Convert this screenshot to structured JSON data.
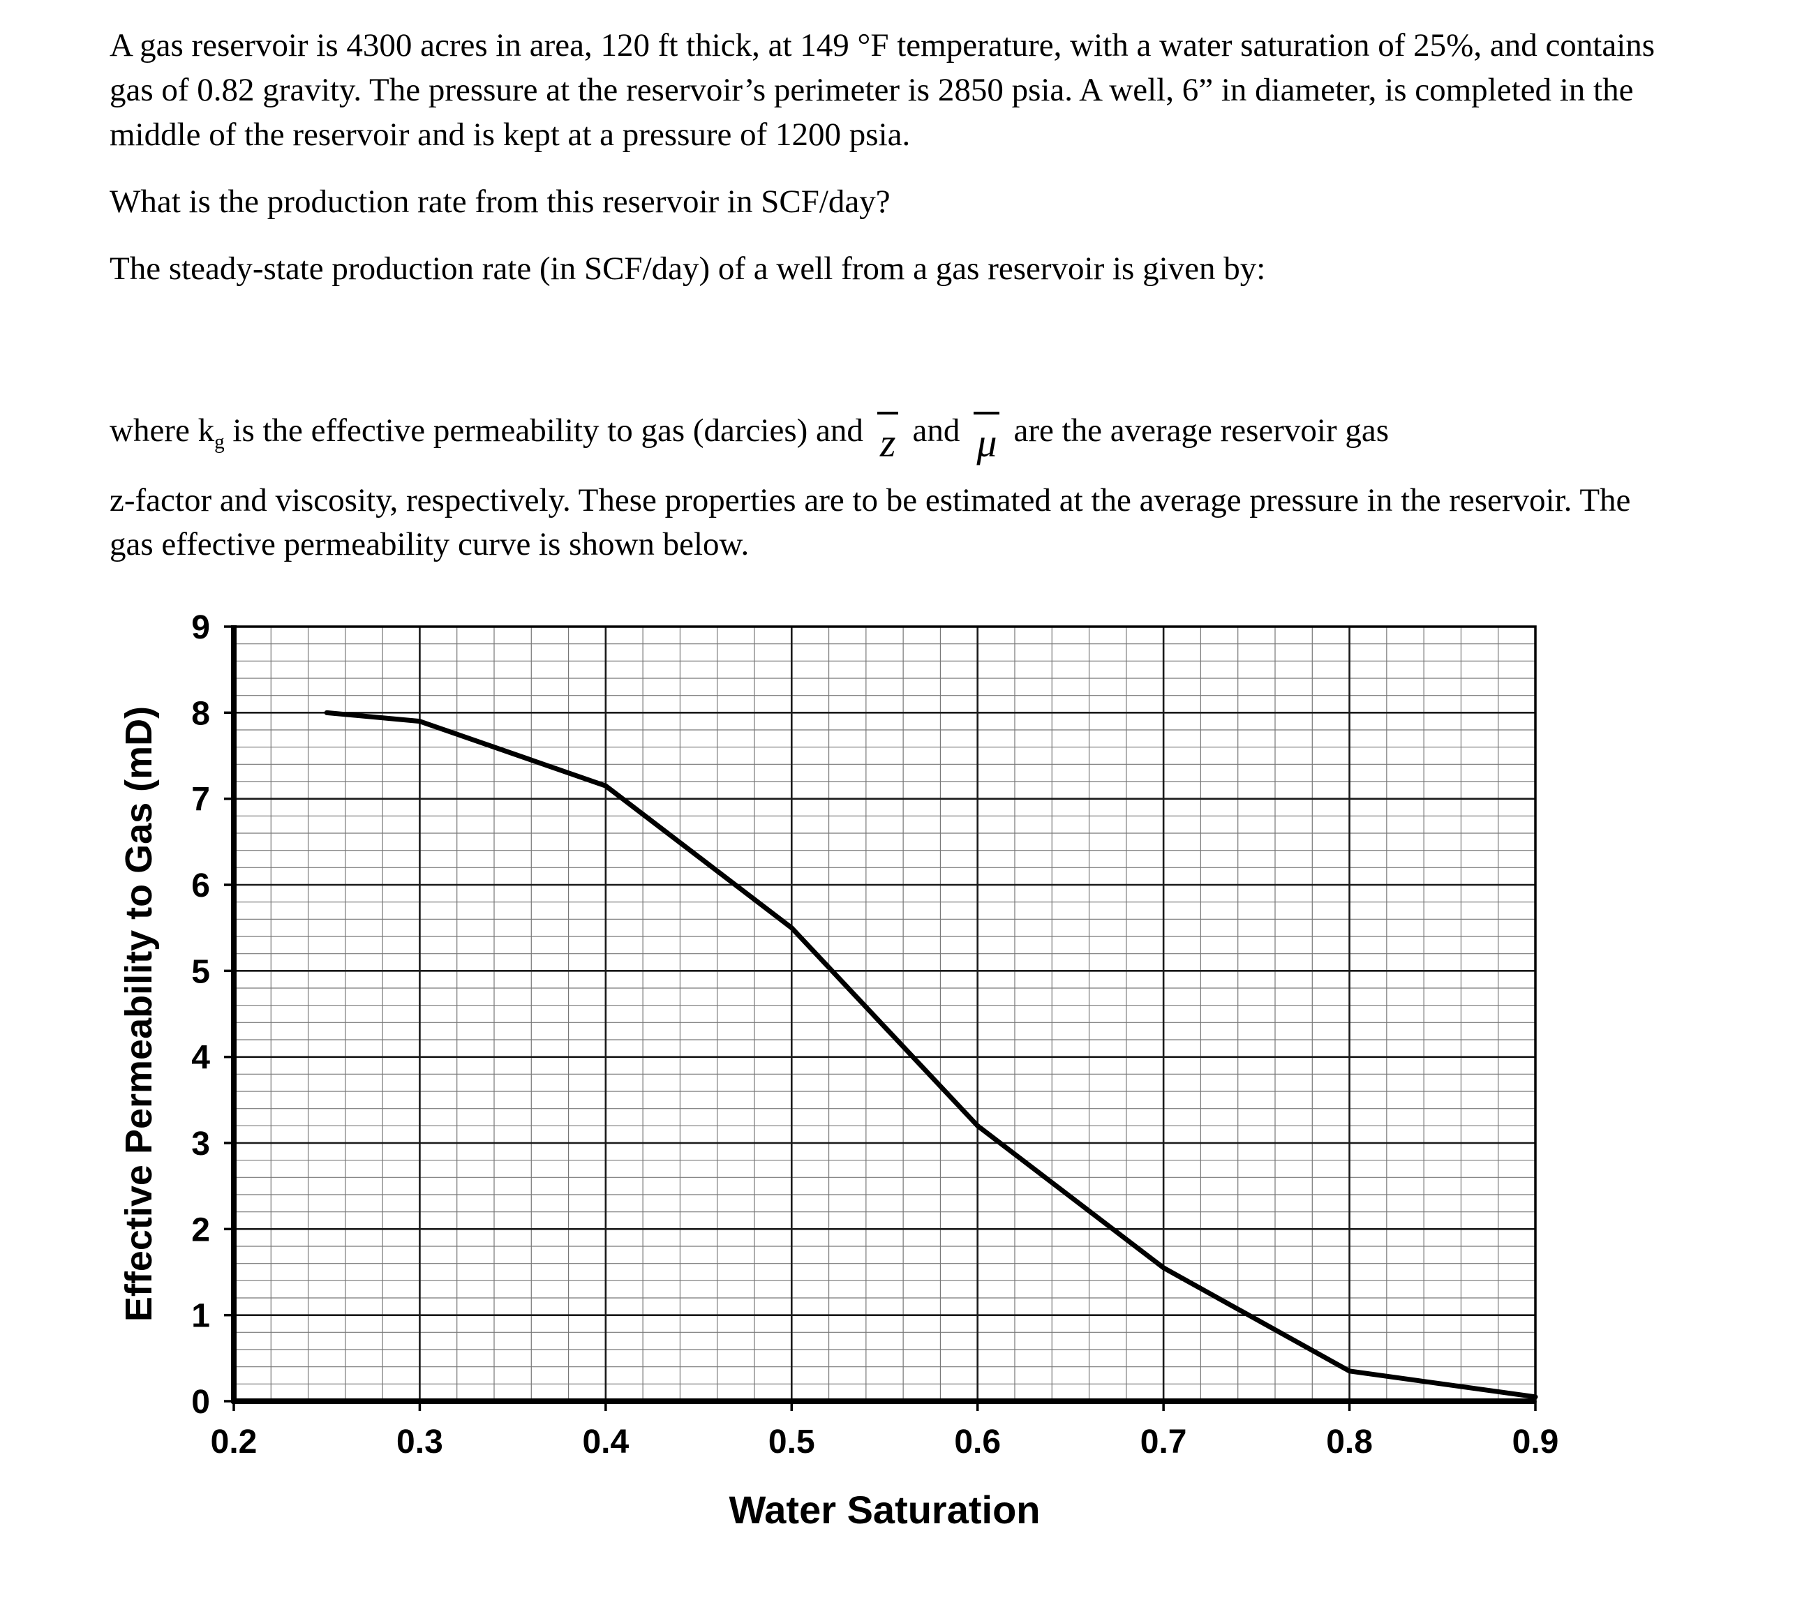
{
  "document": {
    "paragraph1": "A gas reservoir is 4300 acres in area, 120 ft thick, at 149 °F temperature, with a water saturation of 25%, and contains gas of 0.82 gravity. The pressure at the reservoir’s perimeter is 2850 psia. A well, 6” in diameter, is completed in the middle of the reservoir and is kept at a pressure of 1200 psia.",
    "paragraph2": "What is the production rate from this reservoir in SCF/day?",
    "paragraph3": "The steady-state production rate (in SCF/day) of a well from a gas reservoir is given by:",
    "paragraph4": {
      "pre": "where k",
      "sub": "g",
      "mid": " is the effective permeability to gas (darcies) and",
      "zbar": "z",
      "and": "and",
      "mubar": "μ",
      "post": "are the average reservoir gas"
    },
    "paragraph5": "z-factor and viscosity, respectively. These properties are to be estimated at the average pressure in the reservoir. The gas effective permeability curve is shown below."
  },
  "chart_data": {
    "type": "line",
    "title": "",
    "xlabel": "Water Saturation",
    "ylabel": "Effective Permeability to Gas (mD)",
    "xlim": [
      0.2,
      0.9
    ],
    "ylim": [
      0,
      9
    ],
    "x_ticks": [
      0.2,
      0.3,
      0.4,
      0.5,
      0.6,
      0.7,
      0.8,
      0.9
    ],
    "y_ticks": [
      0,
      1,
      2,
      3,
      4,
      5,
      6,
      7,
      8,
      9
    ],
    "x_minor_step": 0.02,
    "y_minor_step": 0.2,
    "grid": true,
    "legend": false,
    "line_color": "#000000",
    "x": [
      0.25,
      0.3,
      0.4,
      0.5,
      0.6,
      0.7,
      0.8,
      0.9
    ],
    "y": [
      8.0,
      7.9,
      7.15,
      5.5,
      3.2,
      1.55,
      0.35,
      0.05
    ]
  }
}
